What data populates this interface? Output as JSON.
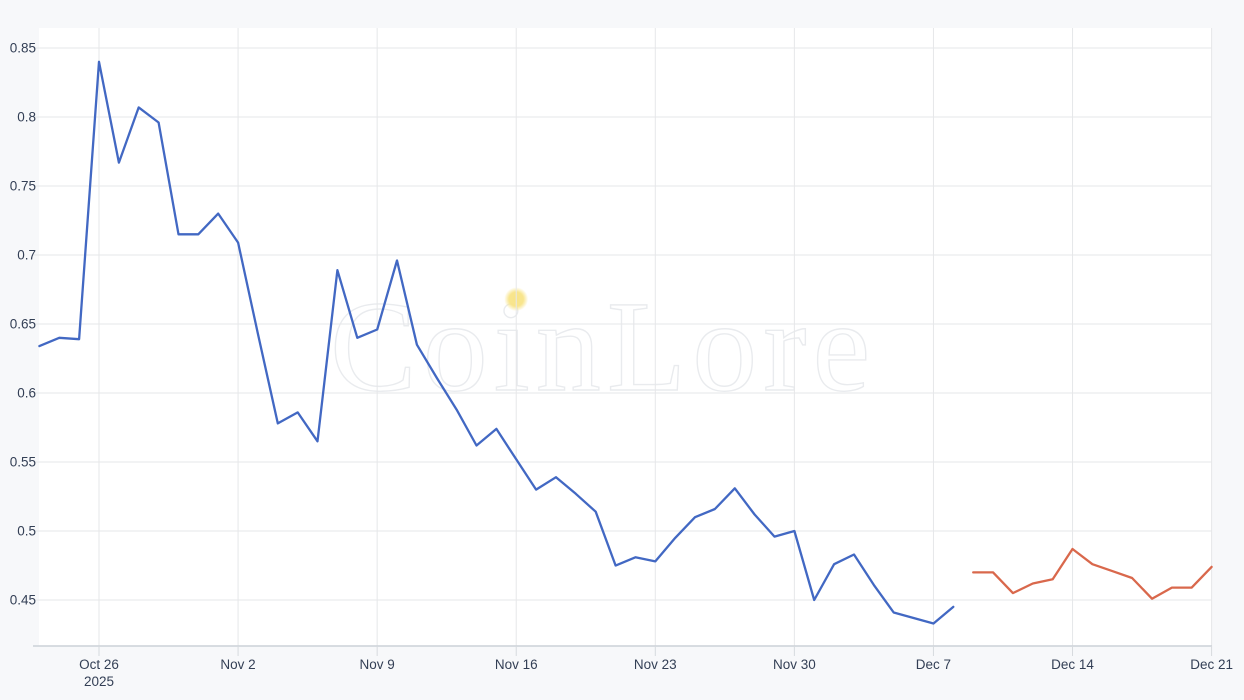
{
  "watermark": {
    "text": "CoinLore"
  },
  "colors": {
    "background": "#f7f8fa",
    "plot_background": "#ffffff",
    "gridline": "#e6e7e9",
    "axis_line": "#ccd1d7",
    "tick_mark": "#d6dade",
    "label_text": "#333f55",
    "series_main": "#4268c3",
    "series_recent": "#d9684c",
    "watermark_dot": "#f8e488"
  },
  "chart_data": {
    "type": "line",
    "title": "",
    "xlabel": "",
    "ylabel": "",
    "grid": true,
    "legend": "none",
    "ylim": [
      0.4167,
      0.8645
    ],
    "total_points": 60,
    "y_ticks": [
      {
        "label": "0.85",
        "value": 0.85
      },
      {
        "label": "0.8",
        "value": 0.8
      },
      {
        "label": "0.75",
        "value": 0.75
      },
      {
        "label": "0.7",
        "value": 0.7
      },
      {
        "label": "0.65",
        "value": 0.65
      },
      {
        "label": "0.6",
        "value": 0.6
      },
      {
        "label": "0.55",
        "value": 0.55
      },
      {
        "label": "0.5",
        "value": 0.5
      },
      {
        "label": "0.45",
        "value": 0.45
      }
    ],
    "x_ticks": [
      {
        "label": "Oct 26",
        "sublabel": "2025",
        "day_index": 3
      },
      {
        "label": "Nov 2",
        "day_index": 10
      },
      {
        "label": "Nov 9",
        "day_index": 17
      },
      {
        "label": "Nov 16",
        "day_index": 24
      },
      {
        "label": "Nov 23",
        "day_index": 31
      },
      {
        "label": "Nov 30",
        "day_index": 38
      },
      {
        "label": "Dec 7",
        "day_index": 45
      },
      {
        "label": "Dec 14",
        "day_index": 52
      },
      {
        "label": "Dec 21",
        "day_index": 59
      }
    ],
    "series": [
      {
        "name": "price-history-blue",
        "color": "#4268c3",
        "start_day_index": 0,
        "dates": [
          "Oct 23",
          "Oct 24",
          "Oct 25",
          "Oct 26",
          "Oct 27",
          "Oct 28",
          "Oct 29",
          "Oct 30",
          "Oct 31",
          "Nov 1",
          "Nov 2",
          "Nov 3",
          "Nov 4",
          "Nov 5",
          "Nov 6",
          "Nov 7",
          "Nov 8",
          "Nov 9",
          "Nov 10",
          "Nov 11",
          "Nov 12",
          "Nov 13",
          "Nov 14",
          "Nov 15",
          "Nov 16",
          "Nov 17",
          "Nov 18",
          "Nov 19",
          "Nov 20",
          "Nov 21",
          "Nov 22",
          "Nov 23",
          "Nov 24",
          "Nov 25",
          "Nov 26",
          "Nov 27",
          "Nov 28",
          "Nov 29",
          "Nov 30",
          "Dec 1",
          "Dec 2",
          "Dec 3",
          "Dec 4",
          "Dec 5",
          "Dec 6",
          "Dec 7",
          "Dec 8"
        ],
        "values": [
          0.634,
          0.64,
          0.639,
          0.84,
          0.767,
          0.807,
          0.796,
          0.715,
          0.715,
          0.73,
          0.709,
          0.643,
          0.578,
          0.586,
          0.565,
          0.689,
          0.64,
          0.646,
          0.696,
          0.635,
          0.611,
          0.588,
          0.562,
          0.574,
          0.552,
          0.53,
          0.539,
          0.527,
          0.514,
          0.475,
          0.481,
          0.478,
          0.495,
          0.51,
          0.516,
          0.531,
          0.512,
          0.496,
          0.5,
          0.45,
          0.476,
          0.483,
          0.461,
          0.441,
          0.437,
          0.433,
          0.445
        ]
      },
      {
        "name": "price-recent-orange",
        "color": "#d9684c",
        "start_day_index": 47,
        "dates": [
          "Dec 9",
          "Dec 10",
          "Dec 11",
          "Dec 12",
          "Dec 13",
          "Dec 14",
          "Dec 15",
          "Dec 16",
          "Dec 17",
          "Dec 18",
          "Dec 19",
          "Dec 20",
          "Dec 21"
        ],
        "values": [
          0.47,
          0.47,
          0.455,
          0.462,
          0.465,
          0.487,
          0.476,
          0.471,
          0.466,
          0.451,
          0.459,
          0.459,
          0.474
        ]
      }
    ],
    "marker": {
      "name": "watermark-coin-dot",
      "day_index": 24,
      "value": 0.668,
      "color": "#f8e488"
    }
  }
}
